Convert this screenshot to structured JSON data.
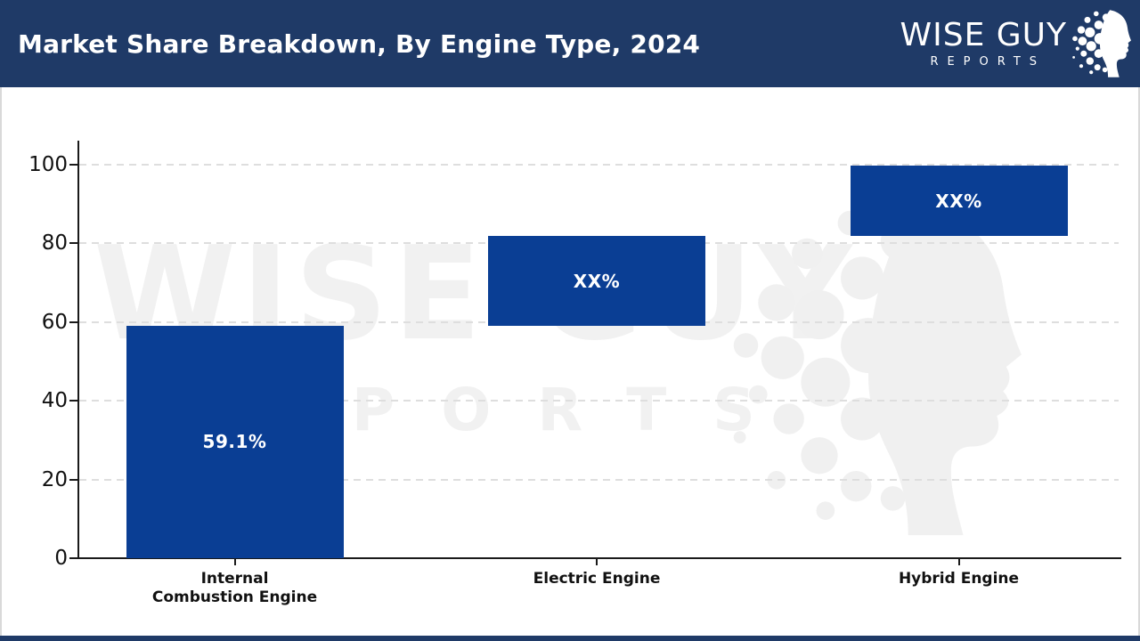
{
  "header": {
    "title": "Market Share Breakdown, By Engine Type, 2024",
    "logo": {
      "wordmark": "WISE GUY",
      "subtext": "REPORTS"
    },
    "background_color": "#1f3a67"
  },
  "watermark": {
    "line1": "WISE GUY",
    "line2": "REPORTS"
  },
  "chart_data": {
    "type": "bar",
    "subtype": "waterfall-stacked-breakdown",
    "title": "Market Share Breakdown, By Engine Type, 2024",
    "categories": [
      "Internal\nCombustion Engine",
      "Electric Engine",
      "Hybrid Engine"
    ],
    "series": [
      {
        "name": "Market Share (%)",
        "segments": [
          {
            "category": "Internal Combustion Engine",
            "start": 0,
            "end": 59.1,
            "label": "59.1%"
          },
          {
            "category": "Electric Engine",
            "start": 59.1,
            "end": 81.8,
            "label": "XX%"
          },
          {
            "category": "Hybrid Engine",
            "start": 81.8,
            "end": 99.7,
            "label": "XX%"
          }
        ]
      }
    ],
    "xlabel": "",
    "ylabel": "",
    "yticks": [
      0,
      20,
      40,
      60,
      80,
      100
    ],
    "ylim": [
      0,
      106
    ],
    "grid": "horizontal-dashed",
    "legend": "none",
    "bar_color": "#0a3e94",
    "bar_label_color": "#ffffff",
    "axis_color": "#1a1a1a",
    "grid_color": "#dedede"
  }
}
